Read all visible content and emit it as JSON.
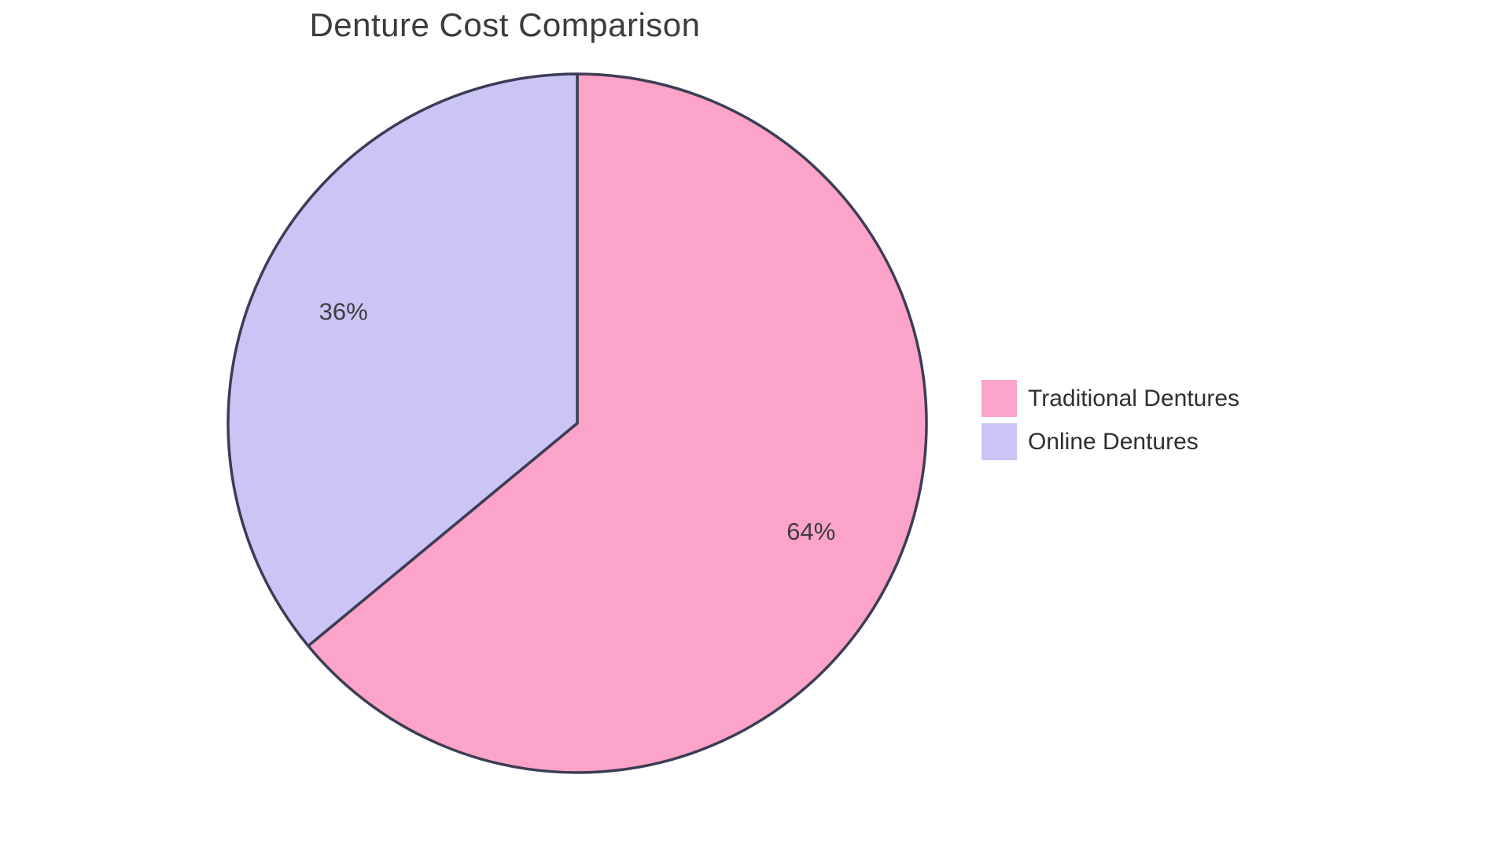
{
  "title": "Denture Cost Comparison",
  "chart_data": {
    "type": "pie",
    "title": "Denture Cost Comparison",
    "labels": [
      "Traditional Dentures",
      "Online Dentures"
    ],
    "values": [
      64,
      36
    ],
    "value_labels": [
      "64%",
      "36%"
    ],
    "colors": [
      "#FBA3C8",
      "#CAC5F5"
    ],
    "border_color": "#3C3D55",
    "label_color": "#3E3E3E",
    "start_angle_deg": 0,
    "direction": "clockwise",
    "legend_position": "right",
    "grid": false
  },
  "legend": {
    "items": [
      {
        "label": "Traditional Dentures",
        "color": "#FBA3C8"
      },
      {
        "label": "Online Dentures",
        "color": "#CAC5F5"
      }
    ]
  }
}
